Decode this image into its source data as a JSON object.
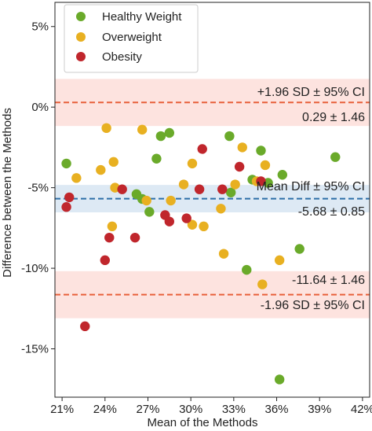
{
  "chart_data": {
    "type": "scatter",
    "xlabel": "Mean of the Methods",
    "ylabel": "Difference between the Methods",
    "xlim": [
      20.5,
      42.5
    ],
    "ylim": [
      -18,
      6.5
    ],
    "x_ticks": [
      21,
      24,
      27,
      30,
      33,
      36,
      39,
      42
    ],
    "y_ticks": [
      5,
      0,
      -5,
      -10,
      -15
    ],
    "x_tick_labels": [
      "21%",
      "24%",
      "27%",
      "30%",
      "33%",
      "36%",
      "39%",
      "42%"
    ],
    "y_tick_labels": [
      "5%",
      "0%",
      "-5%",
      "-10%",
      "-15%"
    ],
    "legend_position": "top-left",
    "series": [
      {
        "name": "Healthy Weight",
        "color": "#6aaa2a",
        "points": [
          [
            21.3,
            -3.5
          ],
          [
            26.2,
            -5.4
          ],
          [
            26.6,
            -5.7
          ],
          [
            27.1,
            -6.5
          ],
          [
            27.6,
            -3.2
          ],
          [
            27.9,
            -1.8
          ],
          [
            28.5,
            -1.6
          ],
          [
            32.7,
            -1.8
          ],
          [
            32.8,
            -5.3
          ],
          [
            33.9,
            -10.1
          ],
          [
            34.3,
            -4.5
          ],
          [
            34.9,
            -2.7
          ],
          [
            35.4,
            -4.7
          ],
          [
            36.4,
            -4.2
          ],
          [
            37.6,
            -8.8
          ],
          [
            40.1,
            -3.1
          ],
          [
            36.2,
            -16.9
          ]
        ]
      },
      {
        "name": "Overweight",
        "color": "#e8b021",
        "points": [
          [
            22.0,
            -4.4
          ],
          [
            23.7,
            -3.9
          ],
          [
            24.1,
            -1.3
          ],
          [
            24.5,
            -7.4
          ],
          [
            24.6,
            -3.4
          ],
          [
            24.7,
            -5.0
          ],
          [
            26.6,
            -1.4
          ],
          [
            26.9,
            -5.8
          ],
          [
            28.6,
            -5.8
          ],
          [
            29.5,
            -4.8
          ],
          [
            30.1,
            -3.5
          ],
          [
            30.1,
            -7.3
          ],
          [
            30.9,
            -7.4
          ],
          [
            32.1,
            -6.3
          ],
          [
            32.3,
            -9.1
          ],
          [
            33.1,
            -4.8
          ],
          [
            33.6,
            -2.5
          ],
          [
            34.6,
            -4.6
          ],
          [
            35.2,
            -3.6
          ],
          [
            35.0,
            -11.0
          ],
          [
            36.2,
            -9.5
          ]
        ]
      },
      {
        "name": "Obesity",
        "color": "#c0262c",
        "points": [
          [
            21.3,
            -6.2
          ],
          [
            21.5,
            -5.6
          ],
          [
            22.6,
            -13.6
          ],
          [
            24.0,
            -9.5
          ],
          [
            24.3,
            -8.1
          ],
          [
            25.2,
            -5.1
          ],
          [
            26.1,
            -8.1
          ],
          [
            28.2,
            -6.7
          ],
          [
            28.5,
            -7.1
          ],
          [
            29.7,
            -6.9
          ],
          [
            30.6,
            -5.1
          ],
          [
            30.8,
            -2.6
          ],
          [
            32.2,
            -5.1
          ],
          [
            33.4,
            -3.7
          ],
          [
            34.9,
            -4.6
          ]
        ]
      }
    ],
    "reference_lines": [
      {
        "name": "upper_loa",
        "value": 0.29,
        "ci": [
          -1.17,
          1.75
        ],
        "line_color": "#e8603a",
        "band_color": "#fde3df"
      },
      {
        "name": "mean_diff",
        "value": -5.68,
        "ci": [
          -6.53,
          -4.83
        ],
        "line_color": "#2d6fa8",
        "band_color": "#dde9f4"
      },
      {
        "name": "lower_loa",
        "value": -11.64,
        "ci": [
          -13.1,
          -10.18
        ],
        "line_color": "#e8603a",
        "band_color": "#fde3df"
      }
    ],
    "annotations": {
      "upper_title": "+1.96 SD ± 95% CI",
      "upper_value": "0.29 ± 1.46",
      "mean_title": "Mean Diff ± 95% CI",
      "mean_value": "-5.68 ± 0.85",
      "lower_value": "-11.64 ± 1.46",
      "lower_title": "-1.96 SD ± 95% CI"
    }
  }
}
